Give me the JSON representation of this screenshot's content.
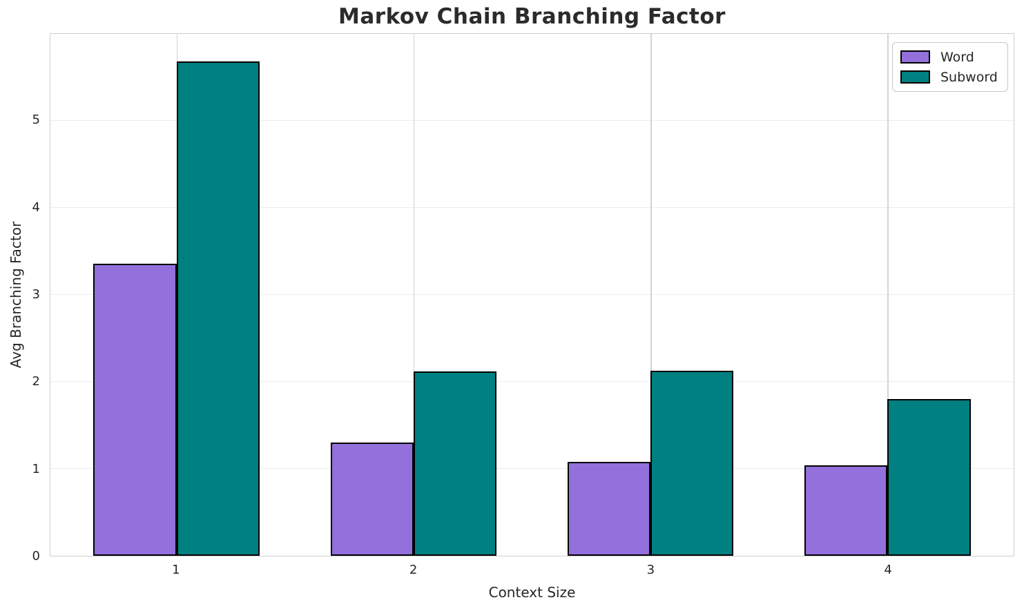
{
  "chart_data": {
    "type": "bar",
    "title": "Markov Chain Branching Factor",
    "xlabel": "Context Size",
    "ylabel": "Avg Branching Factor",
    "categories": [
      "1",
      "2",
      "3",
      "4"
    ],
    "x_positions": [
      1,
      2,
      3,
      4
    ],
    "series": [
      {
        "name": "Word",
        "color": "#9370DB",
        "values": [
          3.36,
          1.3,
          1.08,
          1.04
        ]
      },
      {
        "name": "Subword",
        "color": "#008080",
        "values": [
          5.68,
          2.12,
          2.13,
          1.8
        ]
      }
    ],
    "bar_width": 0.35,
    "bar_edge_color": "#000000",
    "xlim": [
      0.468,
      4.532
    ],
    "ylim": [
      0,
      6
    ],
    "yticks": [
      0,
      1,
      2,
      3,
      4,
      5
    ],
    "grid": true,
    "legend_position": "upper right",
    "colors": {
      "text": "#262626",
      "title_text": "#2b2b2b",
      "grid_horizontal": "#ececec",
      "grid_vertical": "#d4d4d4",
      "spine": "#cfcfcf",
      "background": "#ffffff"
    }
  }
}
